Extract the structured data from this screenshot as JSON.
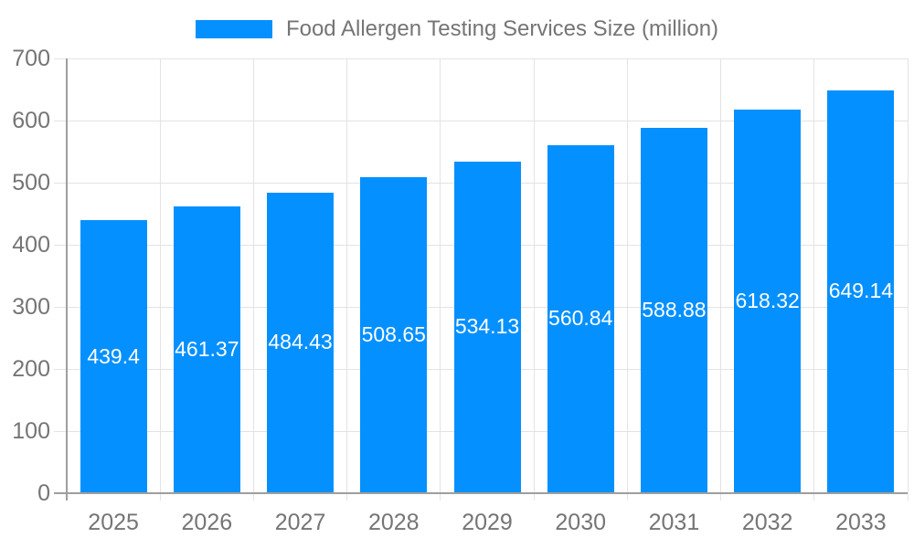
{
  "chart_data": {
    "type": "bar",
    "title": "Food Allergen Testing Services Size (million)",
    "categories": [
      "2025",
      "2026",
      "2027",
      "2028",
      "2029",
      "2030",
      "2031",
      "2032",
      "2033"
    ],
    "values": [
      439.4,
      461.37,
      484.43,
      508.65,
      534.13,
      560.84,
      588.88,
      618.32,
      649.14
    ],
    "xlabel": "",
    "ylabel": "",
    "ylim": [
      0,
      700
    ],
    "yticks": [
      0,
      100,
      200,
      300,
      400,
      500,
      600,
      700
    ],
    "grid": true,
    "legend_position": "top-center",
    "bar_label_position": "inside-middle",
    "colors": {
      "bar": "#0590FF",
      "bar_label": "#FFFFFF",
      "axis_text": "#757575",
      "gridline": "#E3E3E3",
      "axis_line": "#9E9E9E",
      "background": "#FFFFFF"
    }
  }
}
